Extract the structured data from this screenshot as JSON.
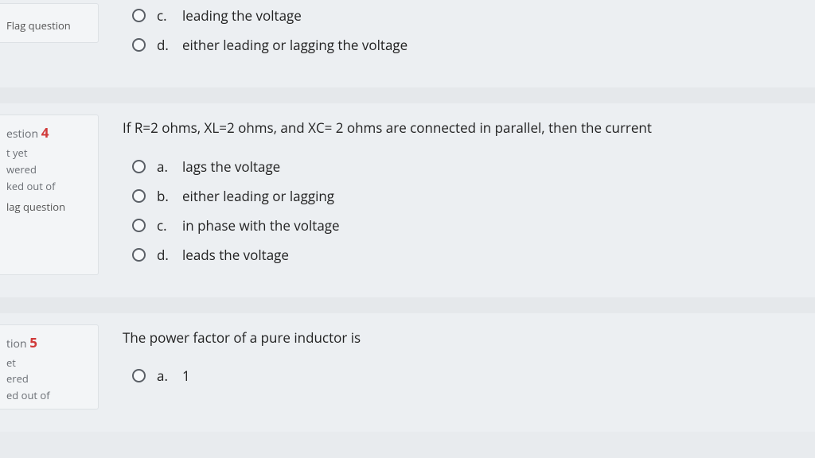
{
  "q3": {
    "flag_label": "Flag question",
    "options": [
      {
        "letter": "c.",
        "text": "leading the voltage"
      },
      {
        "letter": "d.",
        "text": "either leading or lagging the voltage"
      }
    ]
  },
  "q4": {
    "number_prefix": "estion",
    "number": "4",
    "status_line1": "t yet",
    "status_line2": "wered",
    "marked_line": "ked out of",
    "flag_label": "lag question",
    "stem": "If R=2 ohms, XL=2 ohms, and XC= 2 ohms are connected in parallel, then the current",
    "options": [
      {
        "letter": "a.",
        "text": "lags the voltage"
      },
      {
        "letter": "b.",
        "text": "either leading or lagging"
      },
      {
        "letter": "c.",
        "text": "in phase with the voltage"
      },
      {
        "letter": "d.",
        "text": "leads the voltage"
      }
    ]
  },
  "q5": {
    "number_prefix": "tion",
    "number": "5",
    "status_line1": "et",
    "status_line2": "ered",
    "marked_line": "ed out of",
    "stem": "The power factor of a pure inductor is",
    "options": [
      {
        "letter": "a.",
        "text": "1"
      }
    ]
  }
}
